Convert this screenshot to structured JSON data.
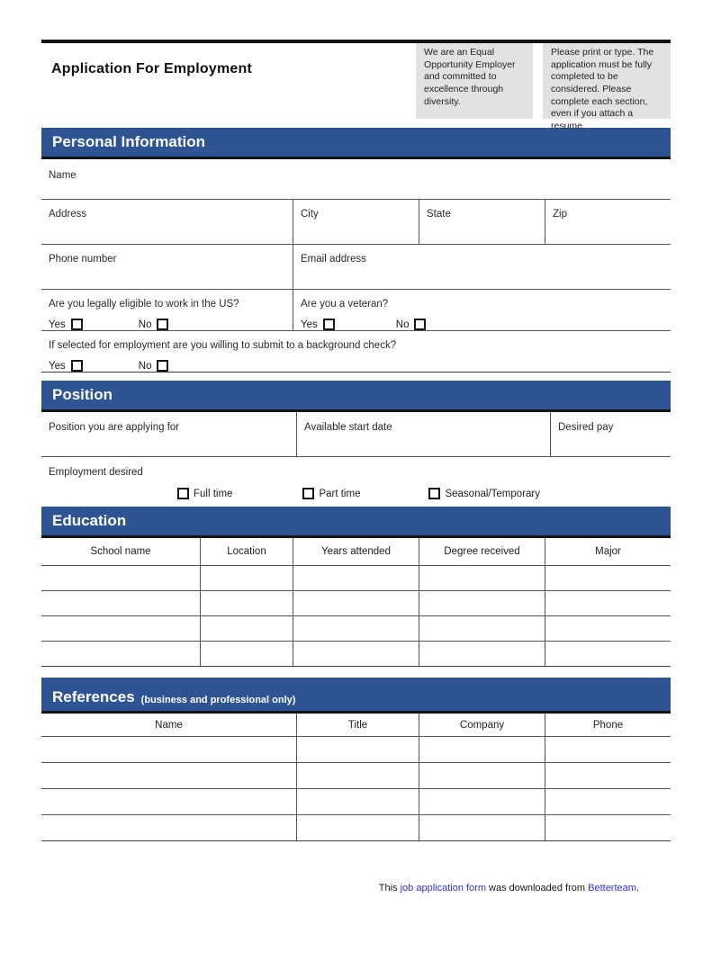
{
  "colors": {
    "section_blue": "#2E5494",
    "link_blue": "#3232DD",
    "notice_gray": "#E2E2E2"
  },
  "header": {
    "title": "Application For Employment",
    "notice_left": "We are an Equal Opportunity Employer and committed to excellence through diversity.",
    "notice_right": "Please print or type. The application must be fully completed to be considered. Please complete each section, even if you attach a resume."
  },
  "sections": {
    "personal": {
      "bar": "Personal Information",
      "labels": {
        "name": "Name",
        "address": "Address",
        "city": "City",
        "state": "State",
        "zip": "Zip",
        "phone": "Phone number",
        "email": "Email address"
      },
      "questions": {
        "eligible": "Are you legally eligible to work in the US?",
        "veteran": "Are you a veteran?",
        "background": "If selected for employment are you willing to submit to a background check?",
        "yes_label": "Yes",
        "no_label": "No"
      }
    },
    "position": {
      "bar": "Position",
      "labels": {
        "applying_for": "Position you are applying for",
        "start_date": "Available start date",
        "desired_pay": "Desired pay",
        "employment_desired": "Employment desired"
      },
      "employment_options": [
        "Full time",
        "Part time",
        "Seasonal/Temporary"
      ]
    },
    "education": {
      "bar": "Education",
      "columns": [
        "School name",
        "Location",
        "Years attended",
        "Degree received",
        "Major"
      ],
      "row_count": 4
    },
    "references": {
      "bar": "References",
      "subtitle": "(business and professional only)",
      "columns": [
        "Name",
        "Title",
        "Company",
        "Phone"
      ],
      "row_count": 4
    }
  },
  "footer": {
    "prefix": "This ",
    "link_form": "job application form",
    "middle": " was downloaded from ",
    "link_site": "Betterteam",
    "suffix": "."
  }
}
